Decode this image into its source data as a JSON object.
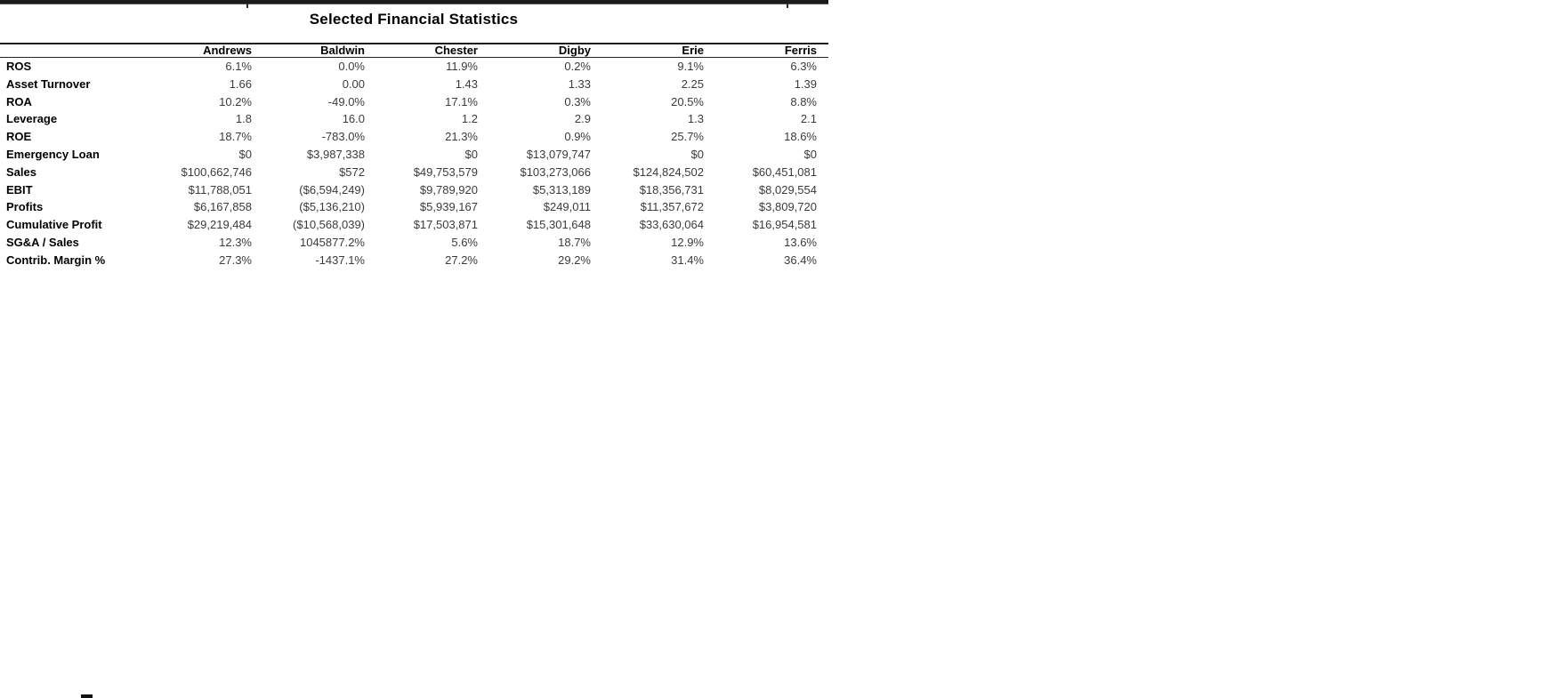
{
  "title": "Selected Financial Statistics",
  "table": {
    "columns": [
      "",
      "Andrews",
      "Baldwin",
      "Chester",
      "Digby",
      "Erie",
      "Ferris"
    ],
    "rows": [
      {
        "label": "ROS",
        "values": [
          "6.1%",
          "0.0%",
          "11.9%",
          "0.2%",
          "9.1%",
          "6.3%"
        ]
      },
      {
        "label": "Asset Turnover",
        "values": [
          "1.66",
          "0.00",
          "1.43",
          "1.33",
          "2.25",
          "1.39"
        ]
      },
      {
        "label": "ROA",
        "values": [
          "10.2%",
          "-49.0%",
          "17.1%",
          "0.3%",
          "20.5%",
          "8.8%"
        ]
      },
      {
        "label": "Leverage",
        "values": [
          "1.8",
          "16.0",
          "1.2",
          "2.9",
          "1.3",
          "2.1"
        ]
      },
      {
        "label": "ROE",
        "values": [
          "18.7%",
          "-783.0%",
          "21.3%",
          "0.9%",
          "25.7%",
          "18.6%"
        ]
      },
      {
        "label": "Emergency Loan",
        "values": [
          "$0",
          "$3,987,338",
          "$0",
          "$13,079,747",
          "$0",
          "$0"
        ]
      },
      {
        "label": "Sales",
        "values": [
          "$100,662,746",
          "$572",
          "$49,753,579",
          "$103,273,066",
          "$124,824,502",
          "$60,451,081"
        ]
      },
      {
        "label": "EBIT",
        "values": [
          "$11,788,051",
          "($6,594,249)",
          "$9,789,920",
          "$5,313,189",
          "$18,356,731",
          "$8,029,554"
        ]
      },
      {
        "label": "Profits",
        "values": [
          "$6,167,858",
          "($5,136,210)",
          "$5,939,167",
          "$249,011",
          "$11,357,672",
          "$3,809,720"
        ]
      },
      {
        "label": "Cumulative Profit",
        "values": [
          "$29,219,484",
          "($10,568,039)",
          "$17,503,871",
          "$15,301,648",
          "$33,630,064",
          "$16,954,581"
        ]
      },
      {
        "label": "SG&A / Sales",
        "values": [
          "12.3%",
          "1045877.2%",
          "5.6%",
          "18.7%",
          "12.9%",
          "13.6%"
        ]
      },
      {
        "label": "Contrib. Margin %",
        "values": [
          "27.3%",
          "-1437.1%",
          "27.2%",
          "29.2%",
          "31.4%",
          "36.4%"
        ]
      }
    ]
  }
}
